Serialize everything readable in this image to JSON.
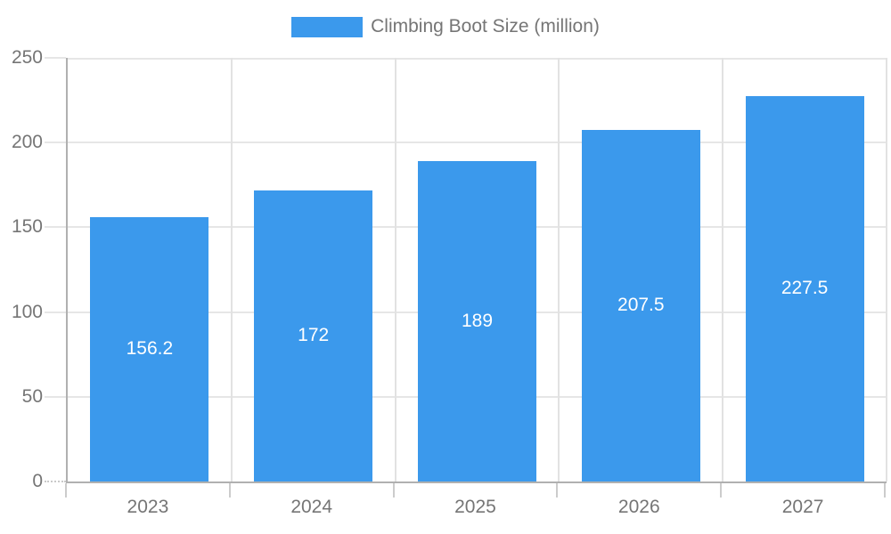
{
  "chart_data": {
    "type": "bar",
    "title": "",
    "series_name": "Climbing Boot Size (million)",
    "categories": [
      "2023",
      "2024",
      "2025",
      "2026",
      "2027"
    ],
    "values": [
      156.2,
      172,
      189,
      207.5,
      227.5
    ],
    "xlabel": "",
    "ylabel": "",
    "ylim": [
      0,
      250
    ],
    "yticks": [
      0,
      50,
      100,
      150,
      200,
      250
    ],
    "grid": true,
    "legend_position": "top",
    "colors": {
      "bar": "#3b99ec",
      "value_label": "#ffffff",
      "axis_text": "#757575",
      "axis_line": "#b0b0b0",
      "gridline": "#e6e6e6"
    }
  }
}
